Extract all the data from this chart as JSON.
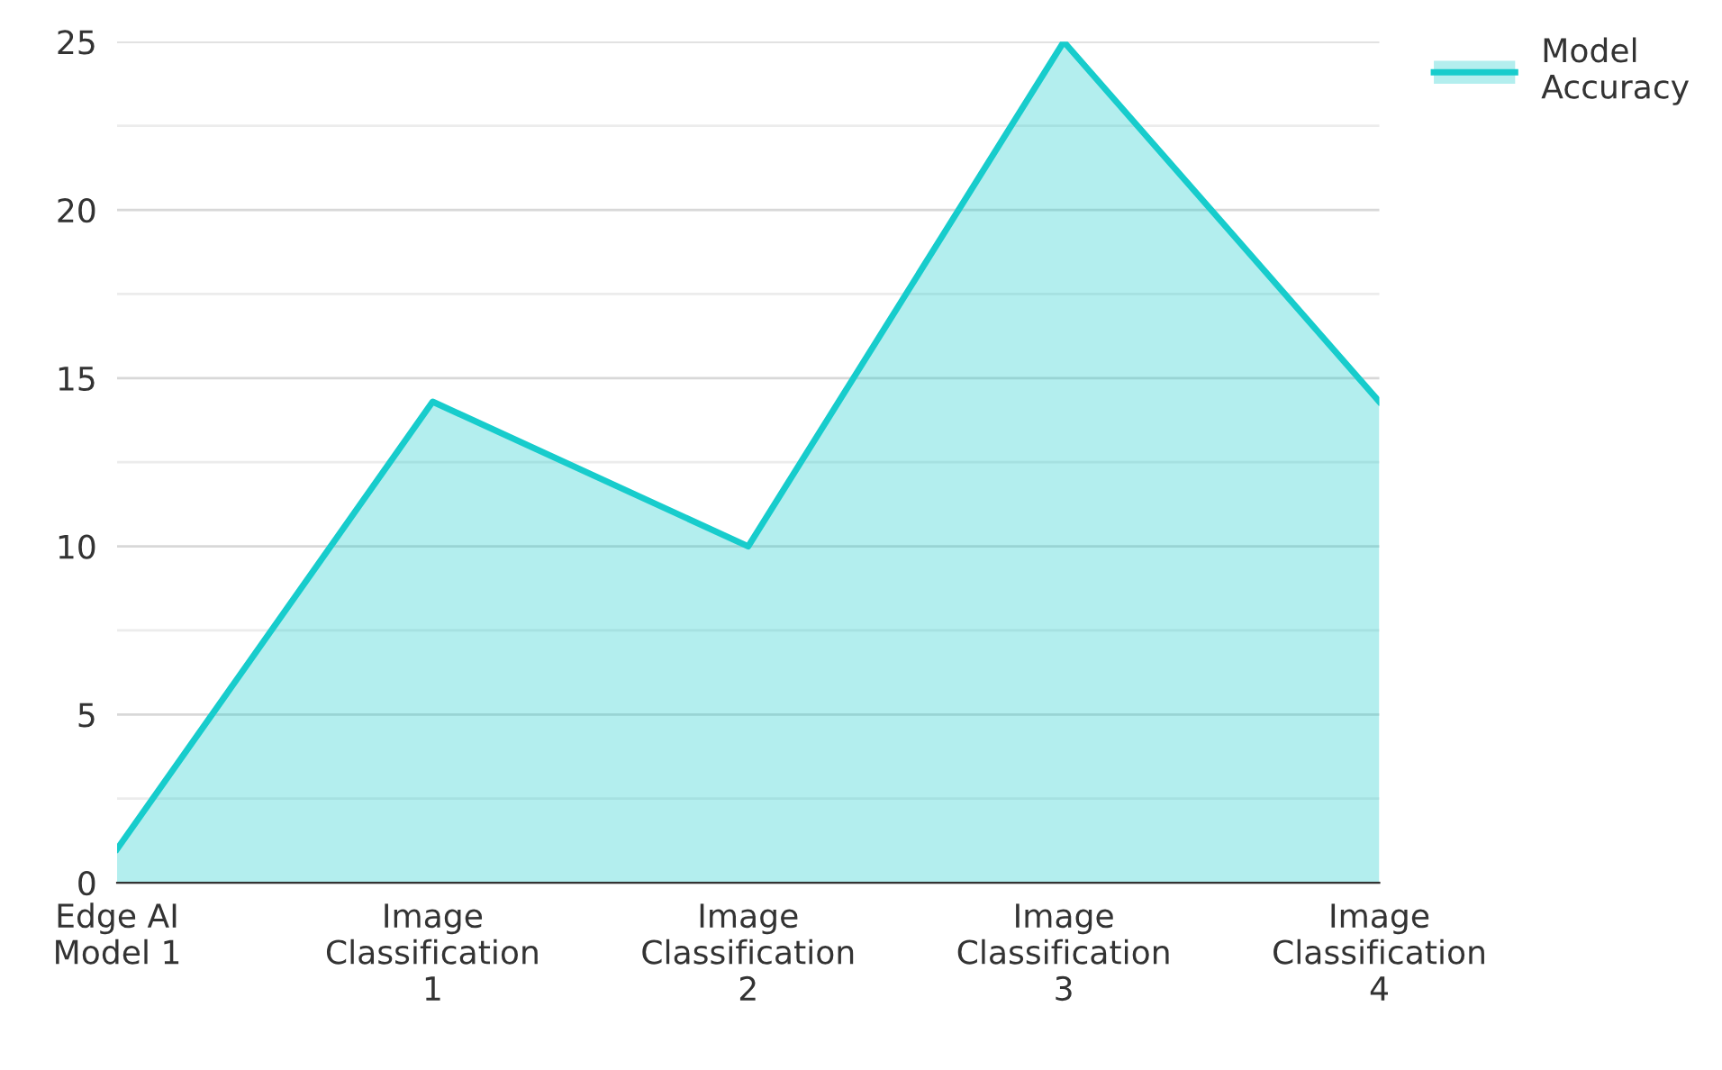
{
  "chart_data": {
    "type": "area",
    "categories": [
      "Edge AI\nModel 1",
      "Image\nClassification\n1",
      "Image\nClassification\n2",
      "Image\nClassification\n3",
      "Image\nClassification\n4"
    ],
    "series": [
      {
        "name": "Model\nAccuracy",
        "color": "#17cccc",
        "values": [
          1,
          14.3,
          10,
          25,
          14.3
        ]
      }
    ],
    "ylim": [
      0,
      25
    ],
    "yticks": [
      0,
      {
        "value": 2.5,
        "label": null
      },
      5,
      {
        "value": 7.5,
        "label": null
      },
      10,
      {
        "value": 12.5,
        "label": null
      },
      15,
      {
        "value": 17.5,
        "label": null
      },
      20,
      {
        "value": 22.5,
        "label": null
      },
      25
    ],
    "grid": "y",
    "legend": "top right"
  }
}
